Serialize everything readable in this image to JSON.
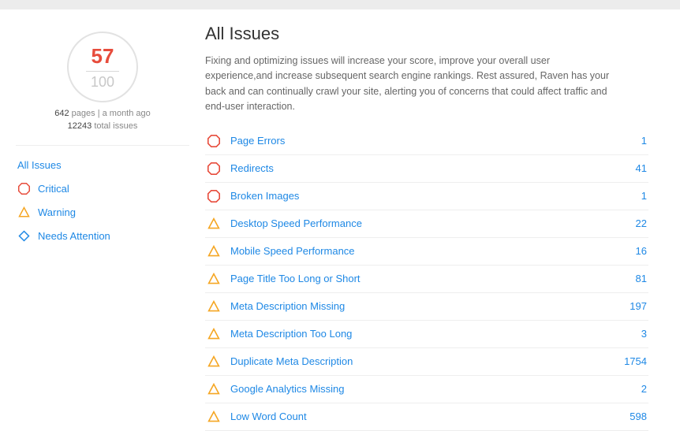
{
  "score": {
    "value": "57",
    "max": "100",
    "color": "#e74c3c"
  },
  "meta": {
    "pages_count": "642",
    "pages_label": "pages",
    "time_ago": "a month ago",
    "total_issues_count": "12243",
    "total_issues_label": "total issues"
  },
  "nav": {
    "all_issues": "All Issues",
    "critical": "Critical",
    "warning": "Warning",
    "needs_attention": "Needs Attention"
  },
  "main": {
    "heading": "All Issues",
    "intro": "Fixing and optimizing issues will increase your score, improve your overall user experience,and increase subsequent search engine rankings. Rest assured, Raven has your back and can continually crawl your site, alerting you of concerns that could affect traffic and end-user interaction."
  },
  "severity_colors": {
    "critical": "#e74c3c",
    "warning": "#f5a623",
    "attention": "#1e88e5"
  },
  "issues": [
    {
      "severity": "critical",
      "label": "Page Errors",
      "count": "1"
    },
    {
      "severity": "critical",
      "label": "Redirects",
      "count": "41"
    },
    {
      "severity": "critical",
      "label": "Broken Images",
      "count": "1"
    },
    {
      "severity": "warning",
      "label": "Desktop Speed Performance",
      "count": "22"
    },
    {
      "severity": "warning",
      "label": "Mobile Speed Performance",
      "count": "16"
    },
    {
      "severity": "warning",
      "label": "Page Title Too Long or Short",
      "count": "81"
    },
    {
      "severity": "warning",
      "label": "Meta Description Missing",
      "count": "197"
    },
    {
      "severity": "warning",
      "label": "Meta Description Too Long",
      "count": "3"
    },
    {
      "severity": "warning",
      "label": "Duplicate Meta Description",
      "count": "1754"
    },
    {
      "severity": "warning",
      "label": "Google Analytics Missing",
      "count": "2"
    },
    {
      "severity": "warning",
      "label": "Low Word Count",
      "count": "598"
    }
  ]
}
